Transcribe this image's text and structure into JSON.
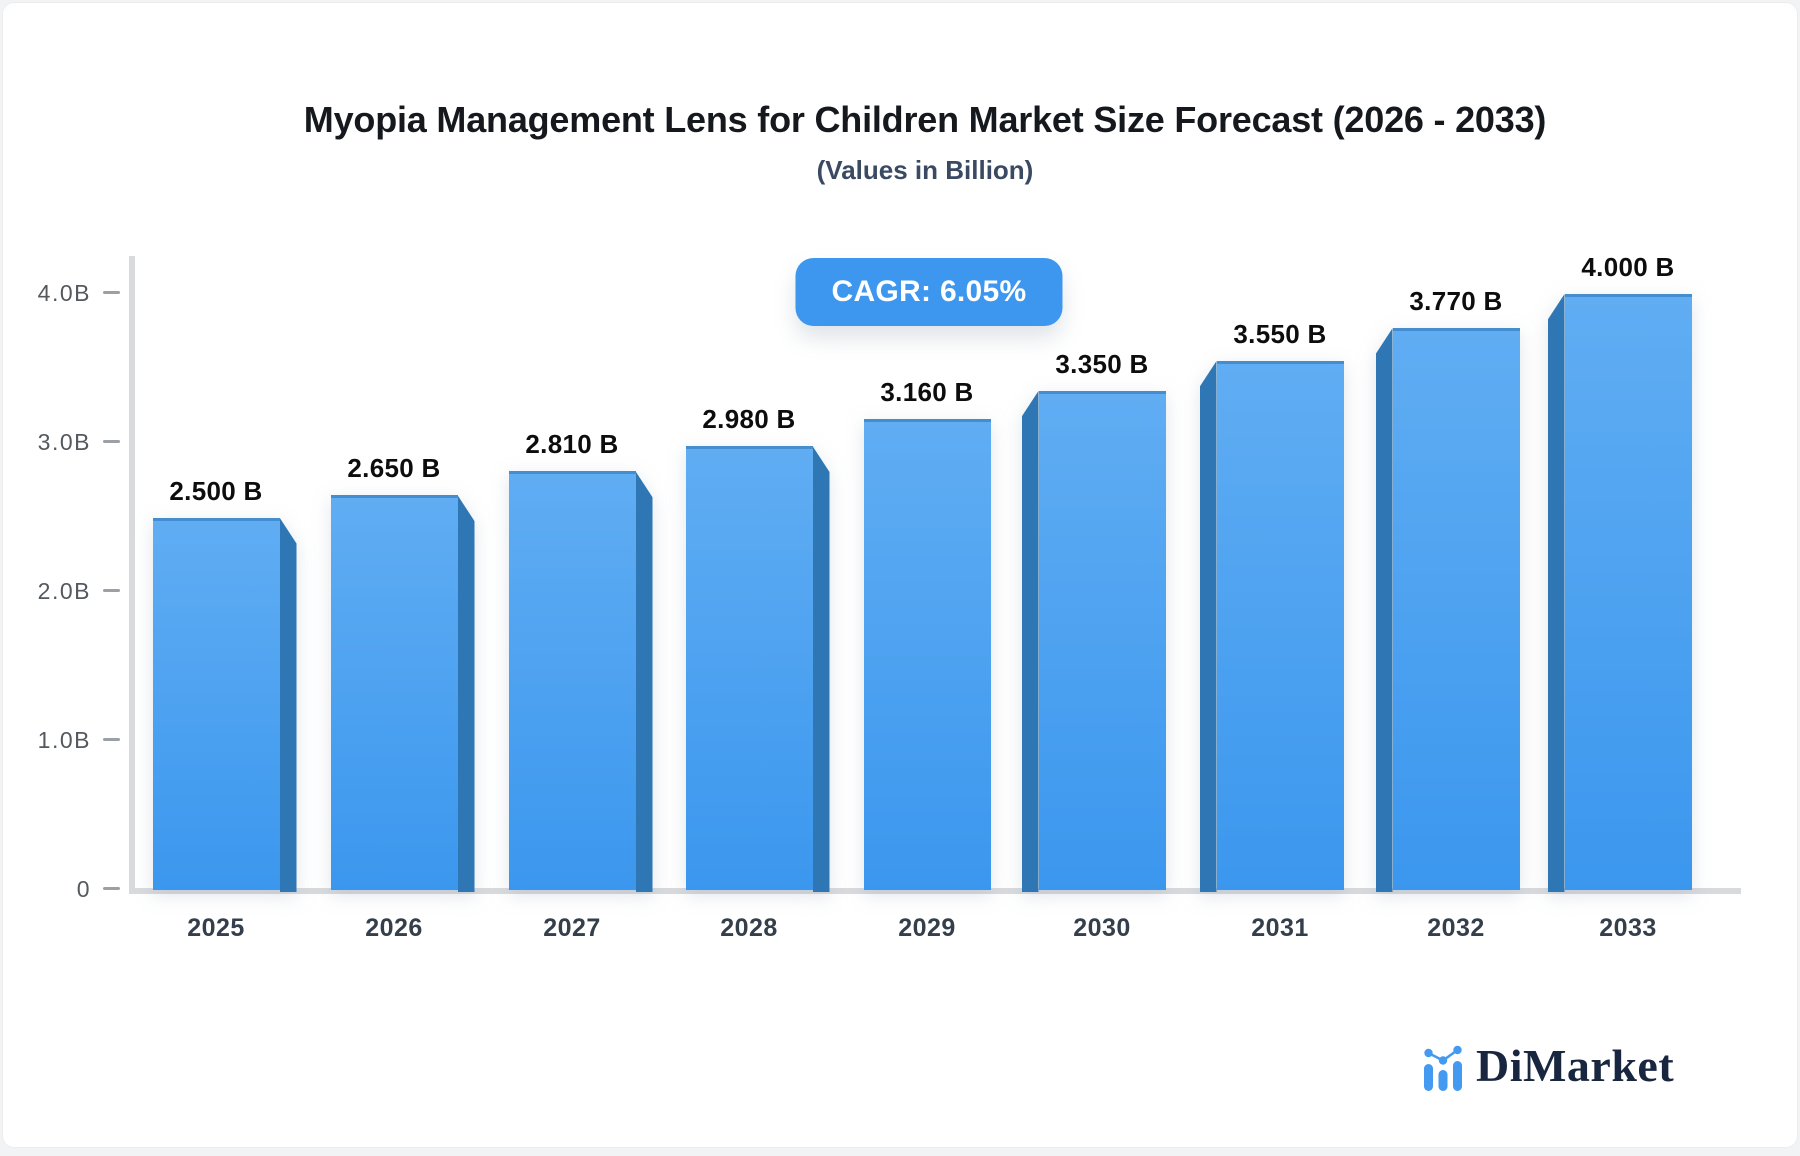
{
  "header": {
    "title": "Myopia Management Lens for Children Market Size Forecast (2026 - 2033)",
    "subtitle": "(Values in Billion)"
  },
  "badge": {
    "label": "CAGR: 6.05%"
  },
  "brand": {
    "name": "DiMarket",
    "icon": "dimarket-bars-logo-icon"
  },
  "colors": {
    "bar_face_top": "#60adf3",
    "bar_face_bottom": "#3b97ee",
    "bar_side": "#2e76b4",
    "badge_bg": "#3e97ef",
    "axis_line": "#d8dadd",
    "title_color": "#15181d",
    "subtitle_color": "#3b4a63",
    "value_label_color": "#0d0d0d",
    "xlabel_color": "#343f4b",
    "ylabel_color": "#54595f",
    "brand_navy": "#18263f",
    "logo_blue": "#449af0"
  },
  "chart_data": {
    "type": "bar",
    "title": "Myopia Management Lens for Children Market Size Forecast (2026 - 2033)",
    "subtitle": "(Values in Billion)",
    "cagr": "6.05%",
    "categories": [
      "2025",
      "2026",
      "2027",
      "2028",
      "2029",
      "2030",
      "2031",
      "2032",
      "2033"
    ],
    "values": [
      2.5,
      2.65,
      2.81,
      2.98,
      3.16,
      3.35,
      3.55,
      3.77,
      4.0
    ],
    "bar_labels": [
      "2.500 B",
      "2.650 B",
      "2.810 B",
      "2.980 B",
      "3.160 B",
      "3.350 B",
      "3.550 B",
      "3.770 B",
      "4.000 B"
    ],
    "xlabel": "",
    "ylabel": "",
    "ylim": [
      0,
      4
    ],
    "yticks": [
      {
        "value": 0,
        "label": "0"
      },
      {
        "value": 1,
        "label": "1.0B"
      },
      {
        "value": 2,
        "label": "2.0B"
      },
      {
        "value": 3,
        "label": "3.0B"
      },
      {
        "value": 4,
        "label": "4.0B"
      }
    ],
    "grid": false,
    "legend": null,
    "value_labels_visible": true,
    "style": "3d-bars-facing-center"
  }
}
